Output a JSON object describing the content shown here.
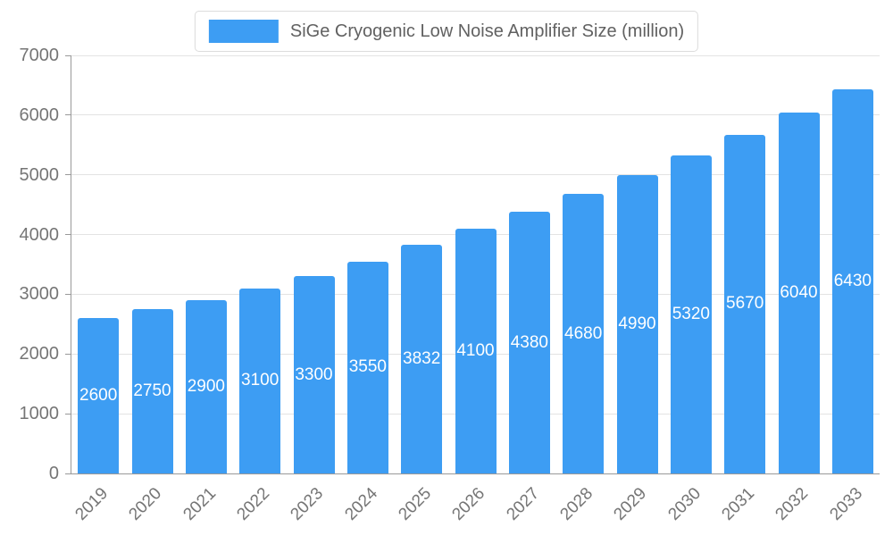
{
  "legend": {
    "label": "SiGe Cryogenic Low Noise Amplifier Size (million)"
  },
  "chart_data": {
    "type": "bar",
    "title": "SiGe Cryogenic Low Noise Amplifier Size (million)",
    "categories": [
      "2019",
      "2020",
      "2021",
      "2022",
      "2023",
      "2024",
      "2025",
      "2026",
      "2027",
      "2028",
      "2029",
      "2030",
      "2031",
      "2032",
      "2033"
    ],
    "values": [
      2600,
      2750,
      2900,
      3100,
      3300,
      3550,
      3832,
      4100,
      4380,
      4680,
      4990,
      5320,
      5670,
      6040,
      6430
    ],
    "xlabel": "",
    "ylabel": "",
    "ylim": [
      0,
      7000
    ],
    "ytick_step": 1000,
    "yticks": [
      "0",
      "1000",
      "2000",
      "3000",
      "4000",
      "5000",
      "6000",
      "7000"
    ],
    "grid": true,
    "legend_position": "top",
    "bar_color": "#3d9df3",
    "bar_label_color": "#ffffff",
    "axis_text_color": "#757575",
    "legend_text_color": "#616161",
    "grid_color": "#e3e3e3",
    "axis_line_color": "#999999"
  }
}
